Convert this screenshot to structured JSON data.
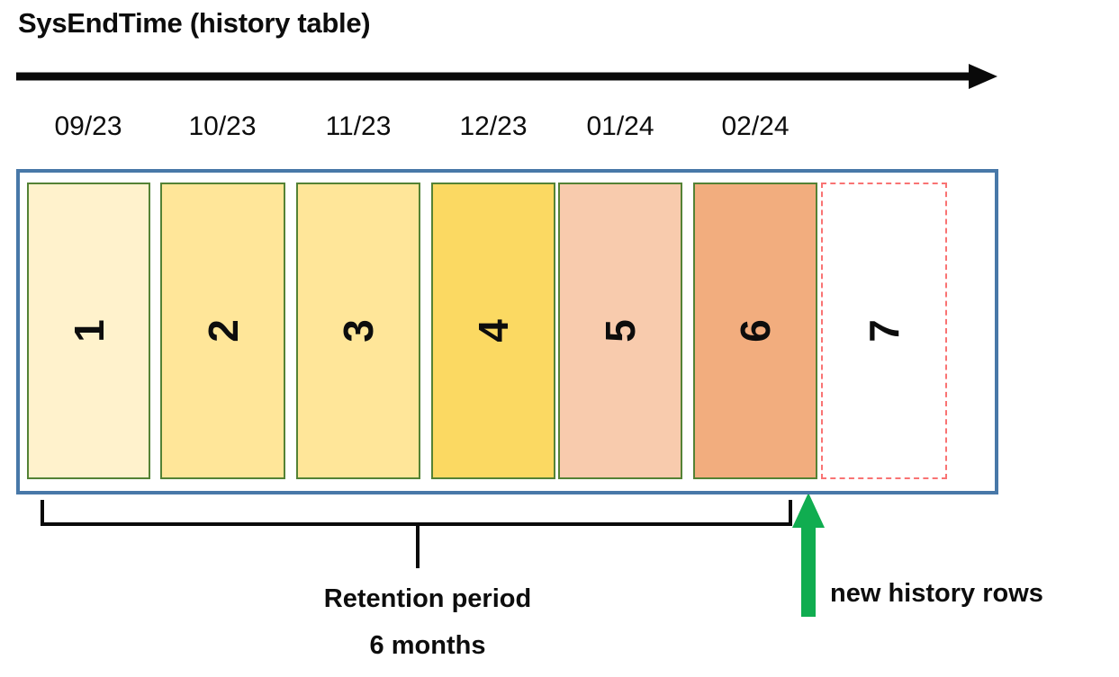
{
  "title": "SysEndTime (history table)",
  "months": [
    "09/23",
    "10/23",
    "11/23",
    "12/23",
    "01/24",
    "02/24"
  ],
  "partitions": [
    {
      "number": "1",
      "fill": "#FFF2CC",
      "border": "#548235",
      "style": "solid"
    },
    {
      "number": "2",
      "fill": "#FFE699",
      "border": "#548235",
      "style": "solid"
    },
    {
      "number": "3",
      "fill": "#FFE699",
      "border": "#548235",
      "style": "solid"
    },
    {
      "number": "4",
      "fill": "#FBD962",
      "border": "#548235",
      "style": "solid"
    },
    {
      "number": "5",
      "fill": "#F8CBAD",
      "border": "#548235",
      "style": "solid"
    },
    {
      "number": "6",
      "fill": "#F2AD7E",
      "border": "#548235",
      "style": "solid"
    },
    {
      "number": "7",
      "fill": "#FFFFFF",
      "border": "#F97373",
      "style": "dashed"
    }
  ],
  "retention": {
    "line1": "Retention period",
    "line2": "6 months"
  },
  "annotations": {
    "new_history_rows": "new history rows"
  },
  "colors": {
    "outer_border": "#4878A8",
    "partition_border": "#548235",
    "dashed_border": "#F97373",
    "arrow_black": "#0A0A0A",
    "green_arrow": "#10AD50",
    "bracket_black": "#0A0A0A"
  }
}
